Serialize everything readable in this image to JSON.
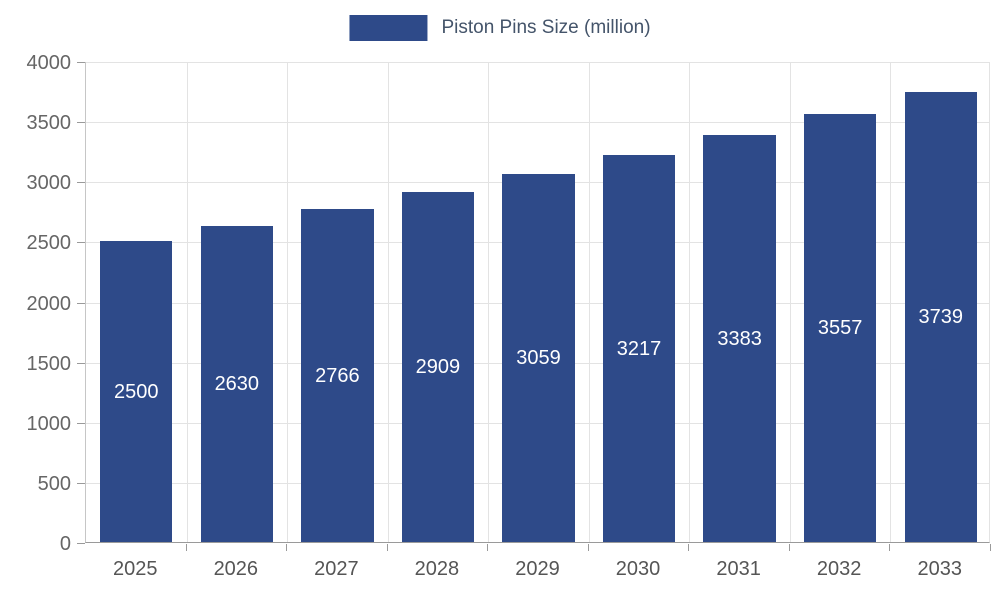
{
  "legend": {
    "label": "Piston Pins Size (million)"
  },
  "colors": {
    "bar": "#2e4a89",
    "bar_label": "#ffffff",
    "grid": "#e3e3e3",
    "axis_text": "#666666",
    "legend_text": "#44546a"
  },
  "chart_data": {
    "type": "bar",
    "title": "",
    "categories": [
      "2025",
      "2026",
      "2027",
      "2028",
      "2029",
      "2030",
      "2031",
      "2032",
      "2033"
    ],
    "values": [
      2500,
      2630,
      2766,
      2909,
      3059,
      3217,
      3383,
      3557,
      3739
    ],
    "series_name": "Piston Pins Size (million)",
    "xlabel": "",
    "ylabel": "",
    "ylim": [
      0,
      4000
    ],
    "yticks": [
      0,
      500,
      1000,
      1500,
      2000,
      2500,
      3000,
      3500,
      4000
    ],
    "grid": true,
    "legend_position": "top",
    "bar_labels_visible": true
  }
}
